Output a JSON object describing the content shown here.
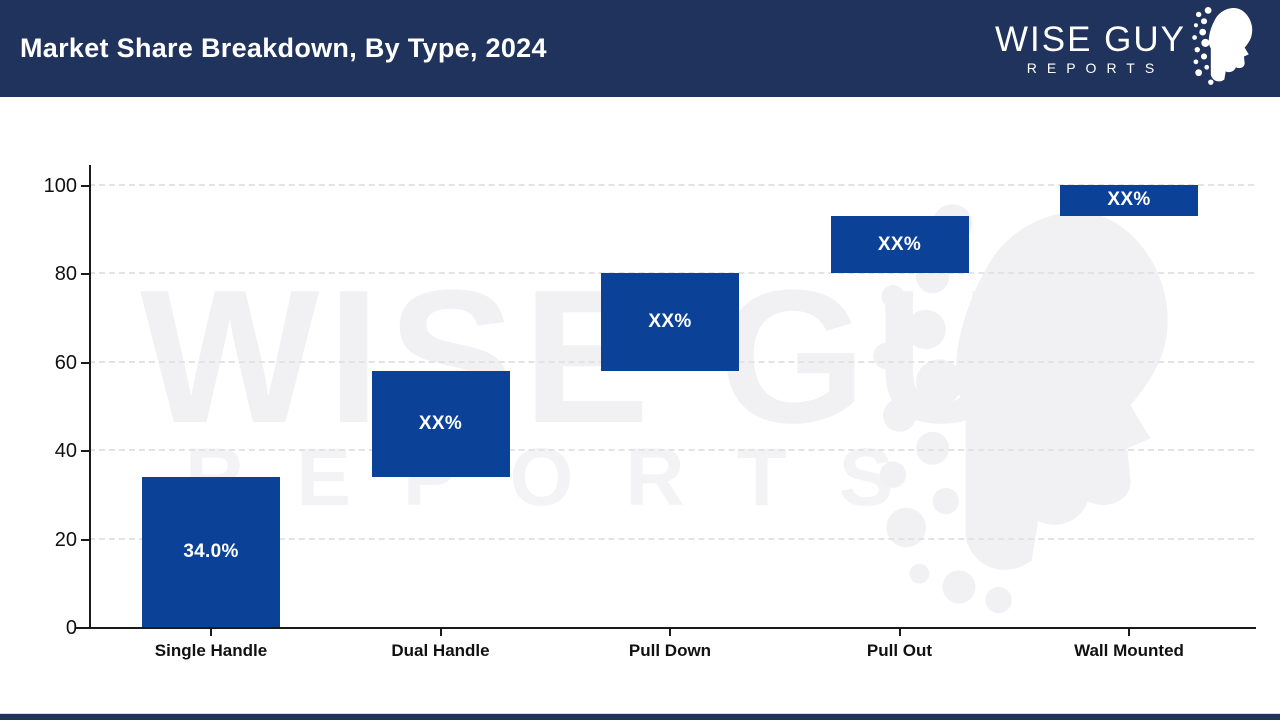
{
  "header": {
    "title": "Market Share Breakdown, By Type, 2024",
    "logo": {
      "primary": "WISE GUY",
      "secondary": "REPORTS"
    }
  },
  "watermark": {
    "primary": "WISE GUY",
    "secondary": "REPORTS"
  },
  "chart_data": {
    "type": "bar",
    "variant": "waterfall",
    "title": "Market Share Breakdown, By Type, 2024",
    "categories": [
      "Single Handle",
      "Dual Handle",
      "Pull Down",
      "Pull Out",
      "Wall Mounted"
    ],
    "series": [
      {
        "name": "Market Share",
        "segments": [
          {
            "category": "Single Handle",
            "start": 0,
            "end": 34,
            "label": "34.0%"
          },
          {
            "category": "Dual Handle",
            "start": 34,
            "end": 58,
            "label": "XX%"
          },
          {
            "category": "Pull Down",
            "start": 58,
            "end": 80,
            "label": "XX%"
          },
          {
            "category": "Pull Out",
            "start": 80,
            "end": 93,
            "label": "XX%"
          },
          {
            "category": "Wall Mounted",
            "start": 93,
            "end": 100,
            "label": "XX%"
          }
        ]
      }
    ],
    "xlabel": "",
    "ylabel": "",
    "ylim": [
      0,
      100
    ],
    "y_ticks": [
      0,
      20,
      40,
      60,
      80,
      100
    ],
    "grid": "horizontal-dashed",
    "legend": "none",
    "bar_color": "#0b4298",
    "bar_label_color": "#ffffff"
  },
  "colors": {
    "header_bg": "#20335d",
    "footer_bg": "#20335d",
    "axis": "#1a1a1a",
    "grid": "#e3e3e3",
    "watermark": "#f1f1f4"
  }
}
